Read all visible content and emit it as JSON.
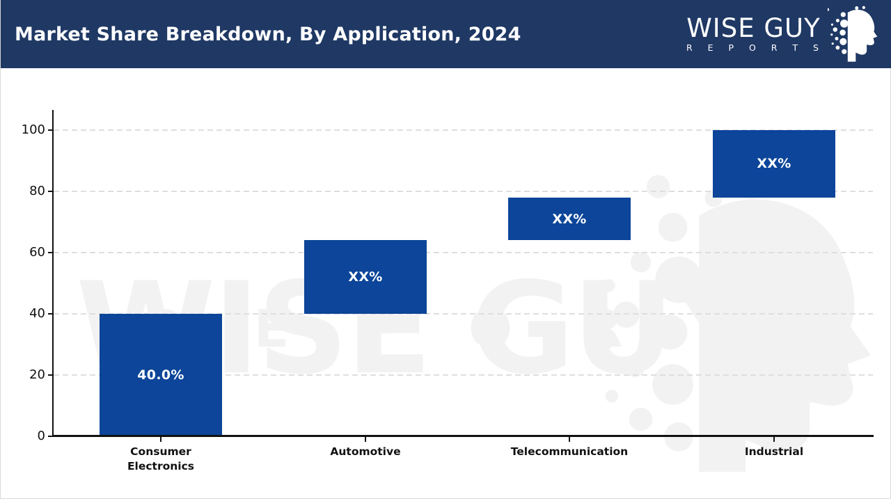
{
  "header": {
    "title": "Market Share Breakdown, By Application, 2024",
    "logo": {
      "line1": "WISE GUY",
      "line2": "R E P O R T S"
    }
  },
  "watermark": {
    "line1": "WISE GUY",
    "line2": "R E P O R T S"
  },
  "colors": {
    "header_bg": "#1f3864",
    "bar": "#0c4599",
    "bar_label": "#ffffff",
    "grid": "#dedede",
    "axis": "#111111",
    "watermark": "#f2f2f2",
    "page_border": "#d9d9d9"
  },
  "chart_data": {
    "type": "bar",
    "subtype": "waterfall",
    "title": "Market Share Breakdown, By Application, 2024",
    "categories": [
      "Consumer Electronics",
      "Automotive",
      "Telecommunication",
      "Industrial"
    ],
    "category_label_lines": [
      [
        "Consumer",
        "Electronics"
      ],
      [
        "Automotive"
      ],
      [
        "Telecommunication"
      ],
      [
        "Industrial"
      ]
    ],
    "segments": [
      {
        "category": "Consumer Electronics",
        "start": 0,
        "end": 40,
        "value": 40,
        "label": "40.0%"
      },
      {
        "category": "Automotive",
        "start": 40,
        "end": 64,
        "value": 24,
        "label": "XX%"
      },
      {
        "category": "Telecommunication",
        "start": 64,
        "end": 78,
        "value": 14,
        "label": "XX%"
      },
      {
        "category": "Industrial",
        "start": 78,
        "end": 100,
        "value": 22,
        "label": "XX%"
      }
    ],
    "xlabel": "",
    "ylabel": "",
    "ylim": [
      0,
      100
    ],
    "yticks": [
      0,
      20,
      40,
      60,
      80,
      100
    ],
    "grid": "horizontal-dashed",
    "legend": "none"
  }
}
